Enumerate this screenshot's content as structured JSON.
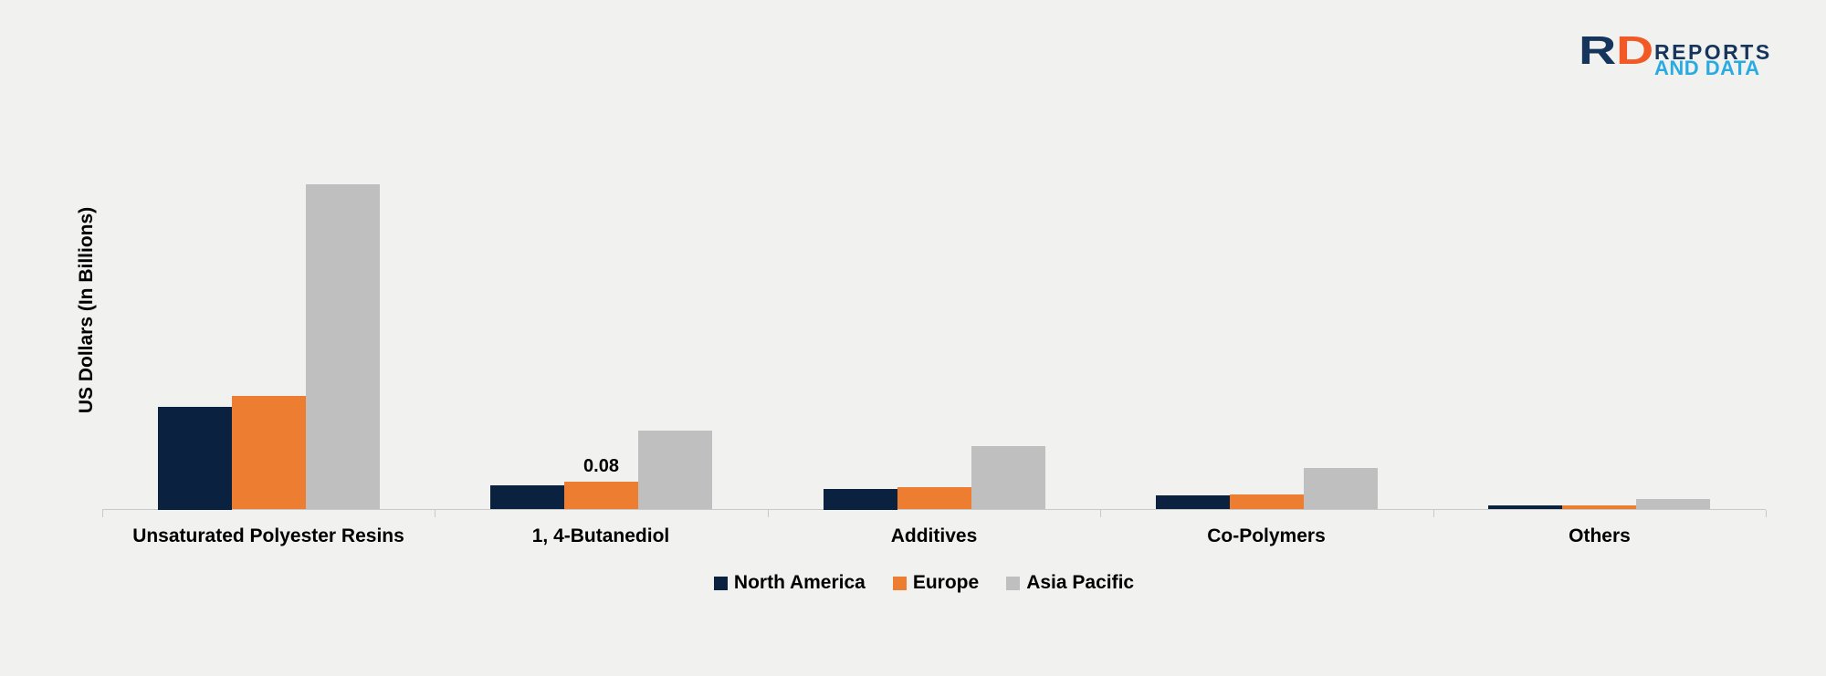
{
  "page": {
    "background": "#f1f1ef"
  },
  "logo": {
    "mark_r": "R",
    "mark_d": "D",
    "line1": "REPORTS",
    "line2": "AND DATA",
    "navy": "#16355c",
    "orange": "#f15a24",
    "cyan": "#29abe2"
  },
  "chart_data": {
    "type": "bar",
    "title": "",
    "xlabel": "",
    "ylabel": "US Dollars (In Billions)",
    "categories": [
      "Unsaturated Polyester Resins",
      "1, 4-Butanediol",
      "Additives",
      "Co-Polymers",
      "Others"
    ],
    "series": [
      {
        "name": "North America",
        "color": "#0a2240",
        "values": [
          0.3,
          0.07,
          0.06,
          0.04,
          0.01
        ]
      },
      {
        "name": "Europe",
        "color": "#ed7d31",
        "values": [
          0.33,
          0.08,
          0.065,
          0.043,
          0.01
        ]
      },
      {
        "name": "Asia Pacific",
        "color": "#bfbfbf",
        "values": [
          0.95,
          0.23,
          0.185,
          0.12,
          0.03
        ]
      }
    ],
    "data_labels": [
      {
        "series": "Europe",
        "category": "1, 4-Butanediol",
        "text": "0.08"
      }
    ],
    "ylim": [
      0,
      0.97
    ],
    "y_tick_labels_visible": false,
    "grid": false,
    "legend_position": "bottom"
  }
}
